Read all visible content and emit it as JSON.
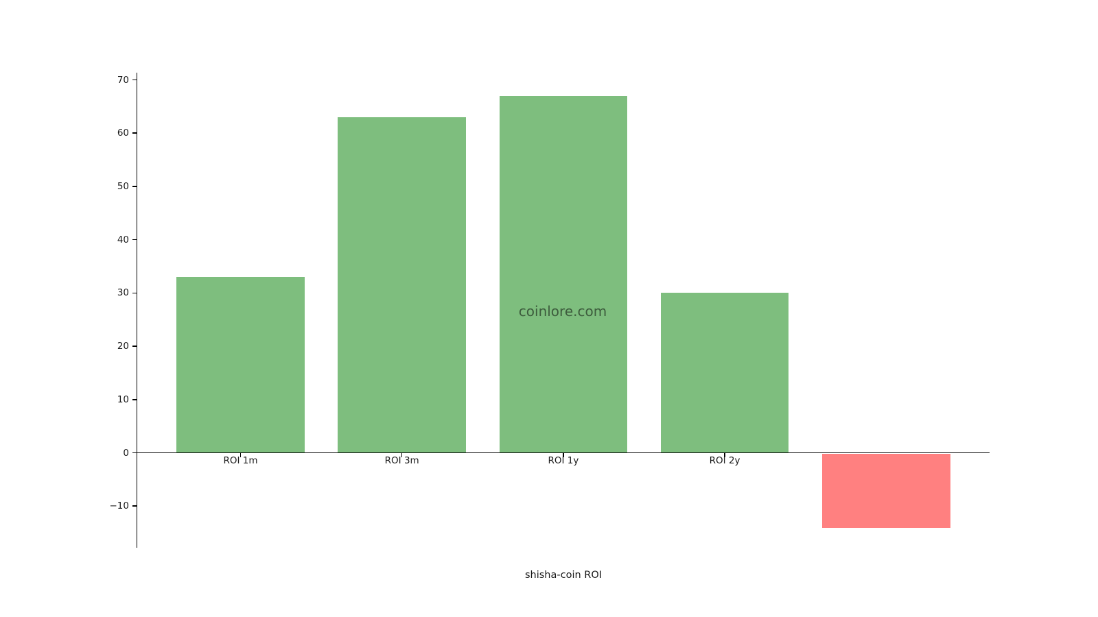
{
  "chart_data": {
    "type": "bar",
    "title": "",
    "xlabel": "shisha-coin ROI",
    "ylabel": "",
    "categories": [
      "ROI 1m",
      "ROI 3m",
      "ROI 1y",
      "ROI 2y",
      ""
    ],
    "values": [
      33,
      63,
      67,
      30,
      -14
    ],
    "series_note": "single series; positive bars green, negative bars red",
    "ylim": [
      -18,
      71.5
    ],
    "yticks": [
      {
        "v": 70,
        "label": "70"
      },
      {
        "v": 60,
        "label": "60"
      },
      {
        "v": 50,
        "label": "50"
      },
      {
        "v": 40,
        "label": "40"
      },
      {
        "v": 30,
        "label": "30"
      },
      {
        "v": 20,
        "label": "20"
      },
      {
        "v": 10,
        "label": "10"
      },
      {
        "v": 0,
        "label": "0"
      },
      {
        "v": -10,
        "label": "−10"
      }
    ],
    "grid": false,
    "legend": false,
    "watermark": "coinlore.com",
    "colors": {
      "positive_bar": "#7ebe7e",
      "negative_bar": "#ff8080",
      "axis": "#000000",
      "tick_text": "#1a1a1a",
      "watermark_text": "#3d5c3d",
      "background": "#ffffff"
    }
  }
}
